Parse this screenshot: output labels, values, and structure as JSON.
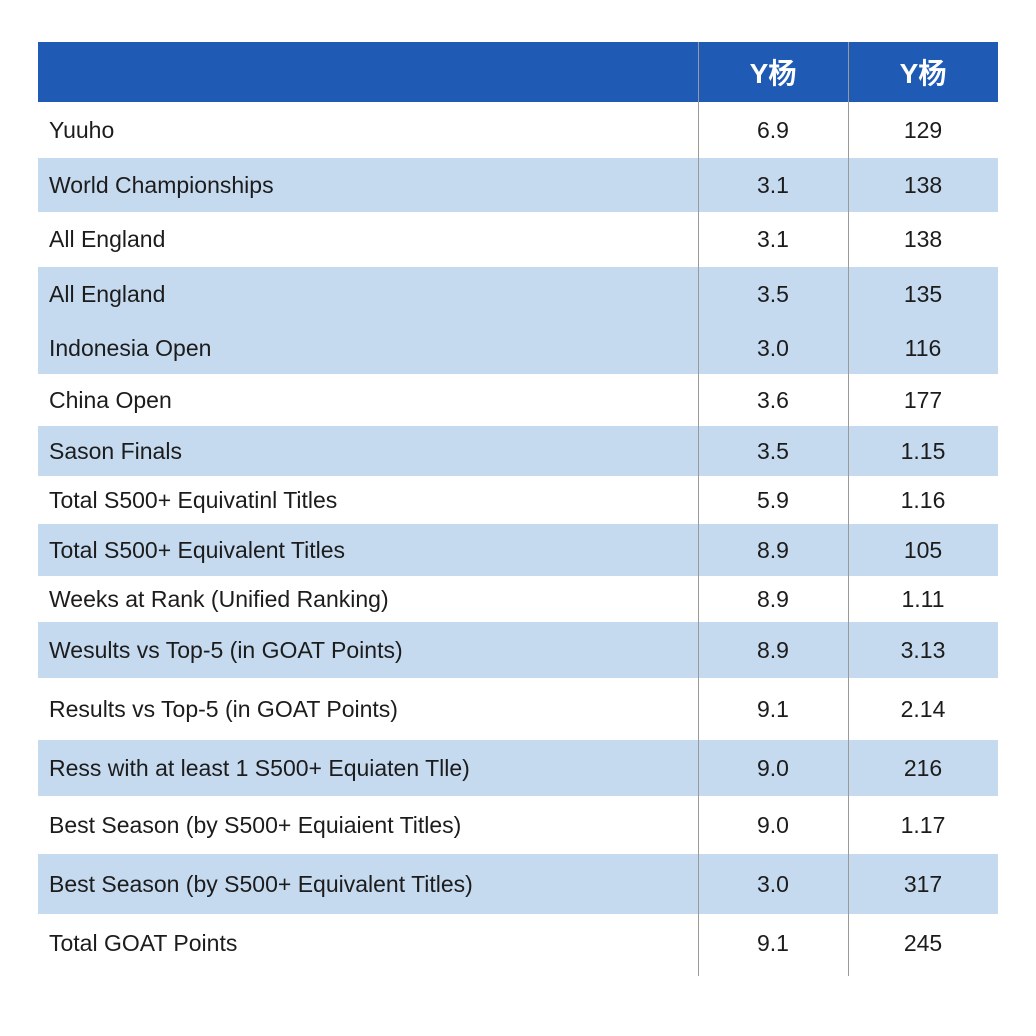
{
  "table": {
    "headers": [
      "",
      "Y杨",
      "Y杨"
    ],
    "rows": [
      {
        "label": "Yuuho",
        "col1": "6.9",
        "col2": "129"
      },
      {
        "label": "World Championships",
        "col1": "3.1",
        "col2": "138"
      },
      {
        "label": "All England",
        "col1": "3.1",
        "col2": "138"
      },
      {
        "label": "All England",
        "col1": "3.5",
        "col2": "135"
      },
      {
        "label": "Indonesia Open",
        "col1": "3.0",
        "col2": "116"
      },
      {
        "label": "China Open",
        "col1": "3.6",
        "col2": "177"
      },
      {
        "label": "Sason Finals",
        "col1": "3.5",
        "col2": "1.15"
      },
      {
        "label": "Total S500+ Equivatinl Titles",
        "col1": "5.9",
        "col2": "1.16"
      },
      {
        "label": "Total S500+ Equivalent Titles",
        "col1": "8.9",
        "col2": "105"
      },
      {
        "label": "Weeks at Rank (Unified Ranking)",
        "col1": "8.9",
        "col2": "1.11"
      },
      {
        "label": "Wesults vs Top-5 (in GOAT Points)",
        "col1": "8.9",
        "col2": "3.13"
      },
      {
        "label": "Results vs Top-5 (in GOAT Points)",
        "col1": "9.1",
        "col2": "2.14"
      },
      {
        "label": "Ress with at least 1 S500+ Equiaten Tlle)",
        "col1": "9.0",
        "col2": "216"
      },
      {
        "label": "Best Season (by S500+ Equiaient Titles)",
        "col1": "9.0",
        "col2": "1.17"
      },
      {
        "label": "Best Season (by S500+ Equivalent Titles)",
        "col1": "3.0",
        "col2": "317"
      },
      {
        "label": "Total GOAT Points",
        "col1": "9.1",
        "col2": "245"
      }
    ]
  },
  "colors": {
    "header_bg": "#1f5bb5",
    "shaded_row": "#c5d9ef",
    "text": "#1c1c1c"
  }
}
